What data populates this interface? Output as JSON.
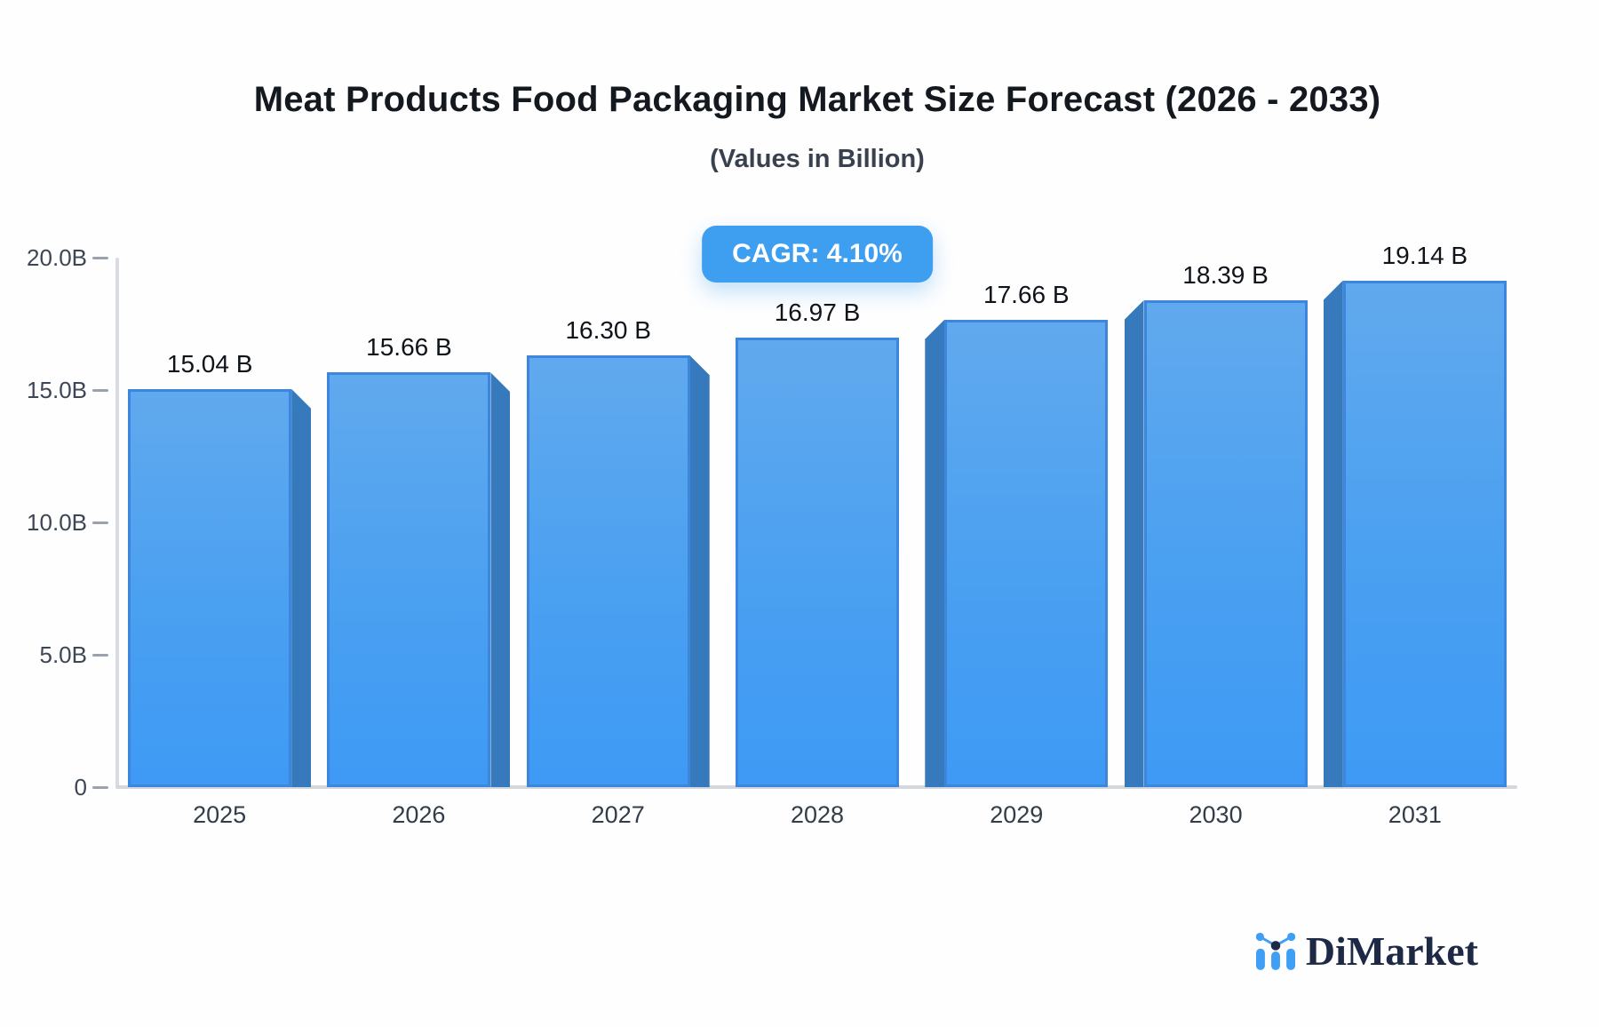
{
  "header": {
    "title": "Meat Products Food Packaging Market Size Forecast (2026 - 2033)",
    "subtitle": "(Values in Billion)"
  },
  "badge": {
    "label": "CAGR: 4.10%"
  },
  "brand": {
    "name": "DiMarket",
    "icon": "mini-bar-chart-with-dots-icon"
  },
  "chart_data": {
    "type": "bar",
    "title": "Meat Products Food Packaging Market Size Forecast (2026 - 2033)",
    "subtitle": "(Values in Billion)",
    "categories": [
      "2025",
      "2026",
      "2027",
      "2028",
      "2029",
      "2030",
      "2031"
    ],
    "values": [
      15.04,
      15.66,
      16.3,
      16.97,
      17.66,
      18.39,
      19.14
    ],
    "value_labels": [
      "15.04 B",
      "15.66 B",
      "16.30 B",
      "16.97 B",
      "17.66 B",
      "18.39 B",
      "19.14 B"
    ],
    "xlabel": "",
    "ylabel": "",
    "ylim": [
      0,
      20
    ],
    "y_tick_values": [
      0,
      5,
      10,
      15,
      20
    ],
    "y_tick_labels": [
      "0",
      "5.0B",
      "10.0B",
      "15.0B",
      "20.0B"
    ],
    "grid": false,
    "legend": null,
    "annotations": [
      "CAGR: 4.10%"
    ],
    "bar_style": "3d-extruded-toward-center"
  },
  "colors": {
    "badge_bg": "#3E9FF1",
    "bar_fill_top": "#61A9EE",
    "bar_fill_bottom": "#3E9AF4",
    "bar_border": "#3C86DB",
    "bar_side": "#3679BC",
    "axis_line": "#D8DBDF",
    "tick_dash": "#9AA2AD",
    "title_text": "#14181F",
    "subtitle_text": "#39414E",
    "axis_label_text": "#3D4654",
    "value_label_text": "#0F141B",
    "logo_navy": "#1D2945",
    "logo_blue": "#3F9FF5"
  }
}
